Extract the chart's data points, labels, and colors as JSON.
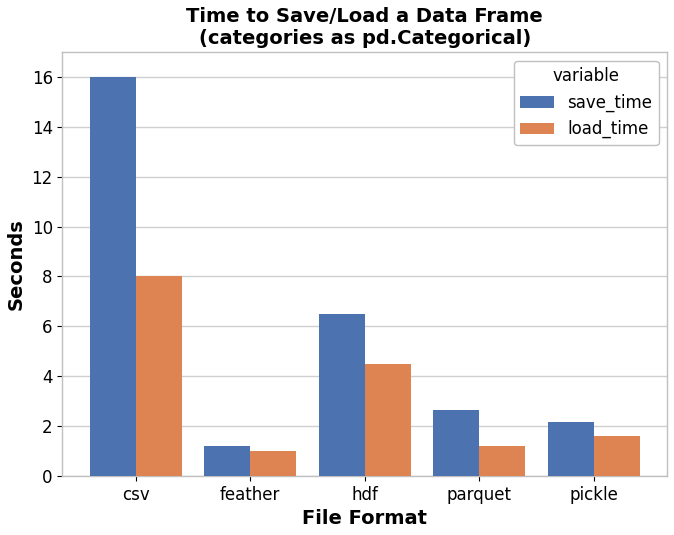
{
  "title": "Time to Save/Load a Data Frame\n(categories as pd.Categorical)",
  "xlabel": "File Format",
  "ylabel": "Seconds",
  "categories": [
    "csv",
    "feather",
    "hdf",
    "parquet",
    "pickle"
  ],
  "save_time": [
    16.0,
    1.2,
    6.5,
    2.65,
    2.15
  ],
  "load_time": [
    8.0,
    1.0,
    4.5,
    1.2,
    1.6
  ],
  "save_color": "#4C72B0",
  "load_color": "#DD8452",
  "ylim": [
    0,
    17
  ],
  "yticks": [
    0,
    2,
    4,
    6,
    8,
    10,
    12,
    14,
    16
  ],
  "legend_title": "variable",
  "legend_labels": [
    "save_time",
    "load_time"
  ],
  "bar_width": 0.4,
  "title_fontsize": 14,
  "axis_label_fontsize": 14,
  "tick_fontsize": 12,
  "legend_fontsize": 12,
  "plot_bg_color": "#ffffff",
  "fig_bg_color": "#ffffff",
  "grid_color": "#d0d0d0",
  "spine_color": "#c0c0c0"
}
